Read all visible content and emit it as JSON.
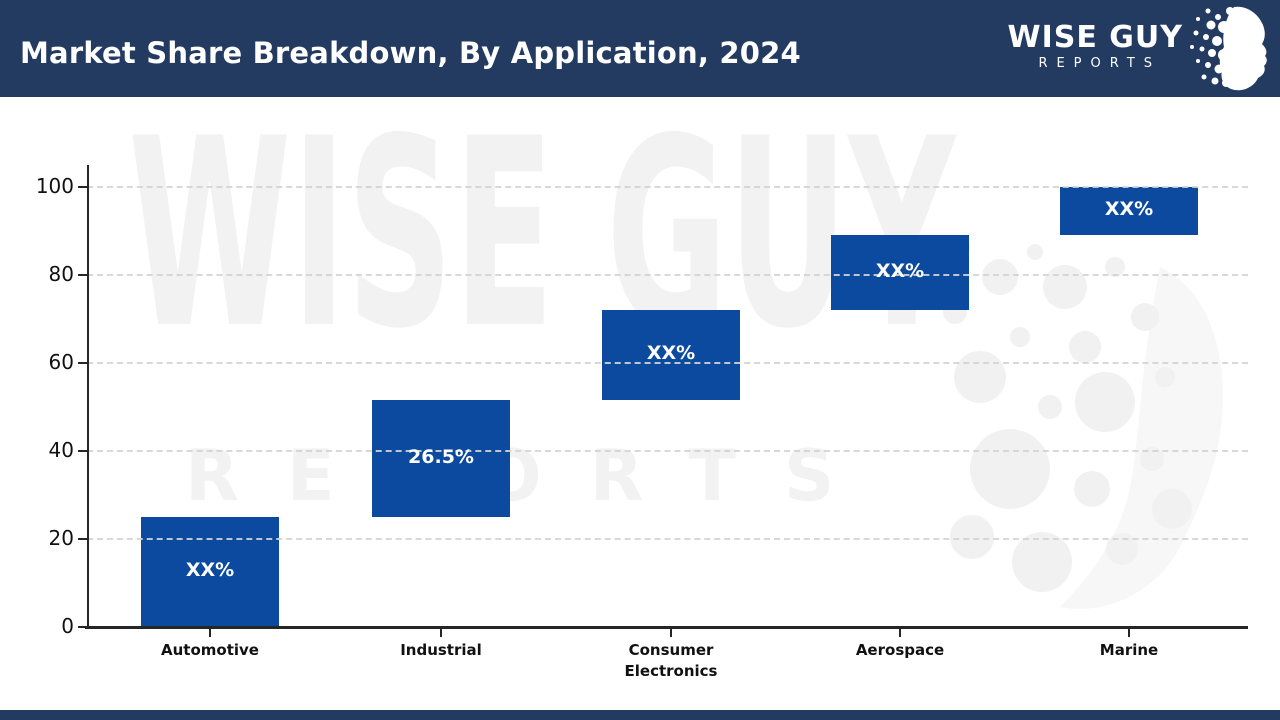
{
  "header": {
    "title": "Market Share Breakdown, By Application, 2024"
  },
  "brand": {
    "logo_line1": "WISE GUY",
    "logo_line2": "REPORTS",
    "head_icon": "dotted-face-profile"
  },
  "watermark": {
    "line1": "WISE GUY",
    "line2": "REPORTS"
  },
  "colors": {
    "header_bg": "#233a61",
    "footer_bg": "#233a61",
    "bar": "#0c4aa0",
    "gridline": "#d4d4d4",
    "axis": "#262626",
    "bar_label_text": "#ffffff",
    "tick_text": "#111111",
    "watermark_text": "#f2f2f2"
  },
  "chart_data": {
    "type": "bar",
    "variant": "waterfall",
    "title": "Market Share Breakdown, By Application, 2024",
    "categories": [
      "Automotive",
      "Industrial",
      "Consumer Electronics",
      "Aerospace",
      "Marine"
    ],
    "category_label_lines": [
      [
        "Automotive"
      ],
      [
        "Industrial"
      ],
      [
        "Consumer",
        "Electronics"
      ],
      [
        "Aerospace"
      ],
      [
        "Marine"
      ]
    ],
    "segments": [
      {
        "category": "Automotive",
        "start": 0,
        "end": 25,
        "increment": 25,
        "label": "XX%"
      },
      {
        "category": "Industrial",
        "start": 25,
        "end": 51.5,
        "increment": 26.5,
        "label": "26.5%"
      },
      {
        "category": "Consumer Electronics",
        "start": 51.5,
        "end": 72,
        "increment": 20.5,
        "label": "XX%"
      },
      {
        "category": "Aerospace",
        "start": 72,
        "end": 89,
        "increment": 17,
        "label": "XX%"
      },
      {
        "category": "Marine",
        "start": 89,
        "end": 100,
        "increment": 11,
        "label": "XX%"
      }
    ],
    "yticks": [
      0,
      20,
      40,
      60,
      80,
      100
    ],
    "ylim": [
      0,
      105
    ],
    "xlabel": "",
    "ylabel": "",
    "grid": "horizontal-dashed",
    "legend": "none"
  }
}
